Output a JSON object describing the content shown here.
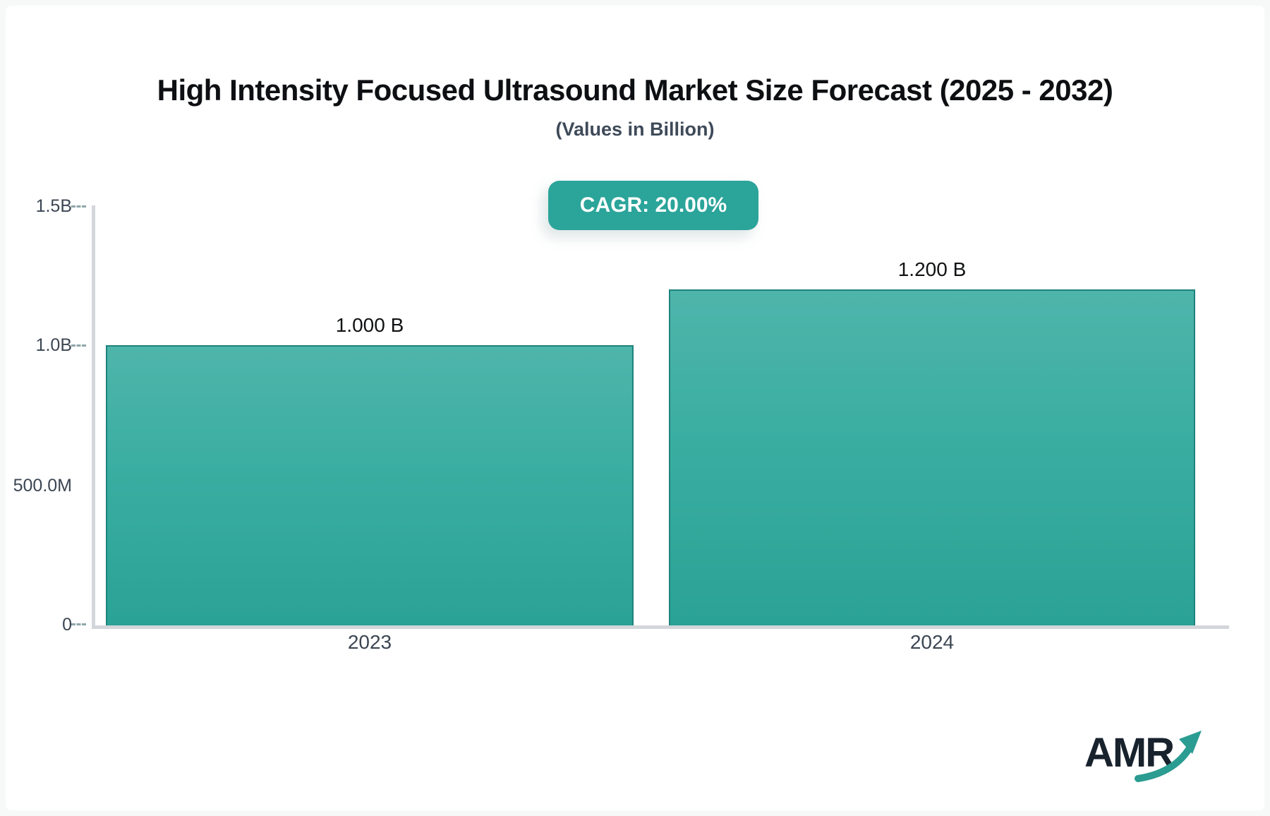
{
  "header": {
    "title": "High Intensity Focused Ultrasound Market Size Forecast (2025 - 2032)",
    "subtitle": "(Values in Billion)"
  },
  "badge": {
    "label": "CAGR: 20.00%",
    "background": "#2ba49a",
    "text_color": "#ffffff"
  },
  "chart_data": {
    "type": "bar",
    "title": "High Intensity Focused Ultrasound Market Size Forecast (2025 - 2032)",
    "subtitle": "(Values in Billion)",
    "unit": "Billion",
    "cagr_percent": 20.0,
    "categories": [
      "2023",
      "2024"
    ],
    "values": [
      1.0,
      1.2
    ],
    "value_labels": [
      "1.000 B",
      "1.200 B"
    ],
    "ylim": [
      0,
      1.5
    ],
    "yticks": [
      {
        "label": "1.5B",
        "value": 1.5
      },
      {
        "label": "1.0B",
        "value": 1.0
      },
      {
        "label": "500.0M",
        "value": 0.5
      },
      {
        "label": "0",
        "value": 0
      }
    ],
    "grid": false,
    "legend": "none",
    "colors": {
      "bar_gradient_top": "#4fb5ab",
      "bar_gradient_bottom": "#2aa295",
      "bar_border": "#1e837c",
      "axis_line": "#d3d6da",
      "tick": "#8fa6a9",
      "axis_text": "#3c4653"
    }
  },
  "logo": {
    "text": "AMR",
    "text_color": "#18222d",
    "arrow_color": "#2b9c92"
  }
}
